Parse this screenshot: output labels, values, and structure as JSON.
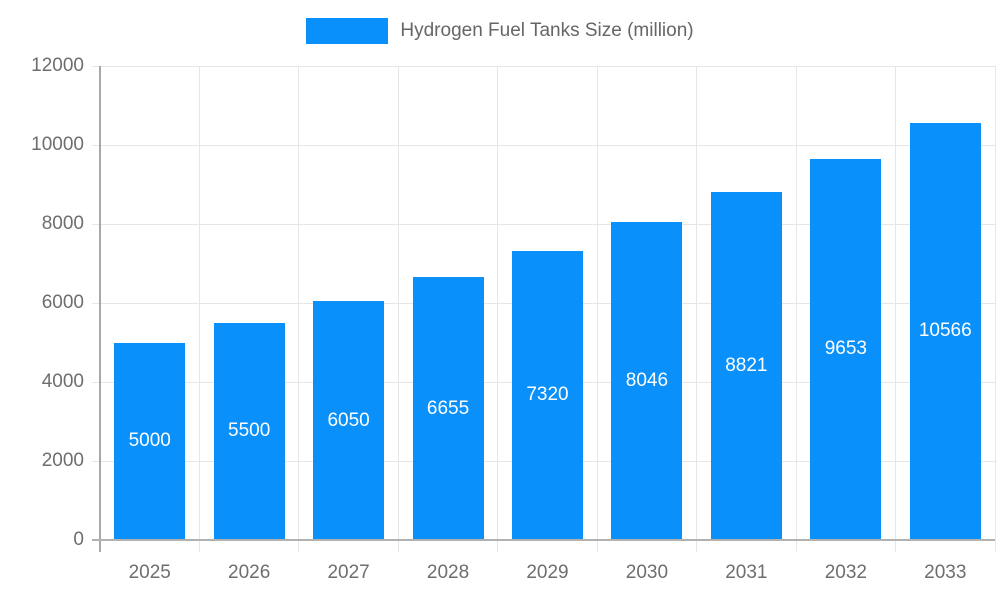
{
  "chart_data": {
    "type": "bar",
    "title": "",
    "legend_label": "Hydrogen Fuel Tanks Size (million)",
    "legend_position": "top",
    "categories": [
      "2025",
      "2026",
      "2027",
      "2028",
      "2029",
      "2030",
      "2031",
      "2032",
      "2033"
    ],
    "values": [
      5000,
      5500,
      6050,
      6655,
      7320,
      8046,
      8821,
      9653,
      10566
    ],
    "bar_labels": [
      "5000",
      "5500",
      "6050",
      "6655",
      "7320",
      "8046",
      "8821",
      "9653",
      "10566"
    ],
    "xlabel": "",
    "ylabel": "",
    "ylim": [
      0,
      12000
    ],
    "ytick_step": 2000,
    "yticks": [
      "0",
      "2000",
      "4000",
      "6000",
      "8000",
      "10000",
      "12000"
    ],
    "grid": true,
    "colors": {
      "bar": "#0a90fa",
      "bar_label": "#ffffff",
      "axis_text": "#6e6e6e",
      "legend_text": "#666666",
      "gridline": "#e6e6e6",
      "axis_line": "#b1b1b1",
      "background": "#ffffff"
    }
  }
}
